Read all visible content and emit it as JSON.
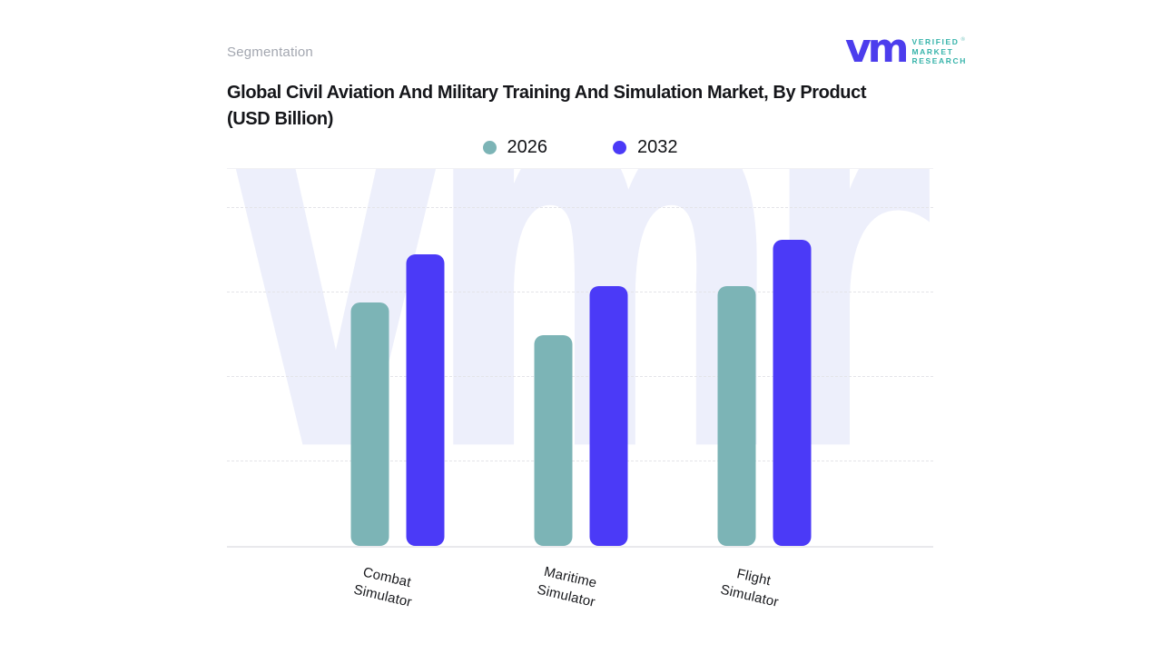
{
  "header": {
    "eyebrow": "Segmentation",
    "logo": {
      "mark": "vm",
      "line1": "VERIFIED",
      "line2": "MARKET",
      "line3": "RESEARCH",
      "registered": "®",
      "mark_color": "#4c3ded",
      "text_color": "#36b3aa"
    }
  },
  "title": {
    "line1": "Global Civil Aviation And Military Training And Simulation Market, By Product",
    "line2": "(USD Billion)"
  },
  "legend": [
    {
      "label": "2026",
      "color": "#7cb4b6"
    },
    {
      "label": "2032",
      "color": "#4b3af7"
    }
  ],
  "chart_data": {
    "type": "bar",
    "title": "Global Civil Aviation And Military Training And Simulation Market, By Product (USD Billion)",
    "categories": [
      "Combat Simulator",
      "Maritime Simulator",
      "Flight Simulator"
    ],
    "series": [
      {
        "name": "2026",
        "color": "#7cb4b6",
        "values": [
          2.88,
          2.49,
          3.07
        ]
      },
      {
        "name": "2032",
        "color": "#4b3af7",
        "values": [
          3.45,
          3.07,
          3.62
        ]
      }
    ],
    "units": "USD Billion (y-axis tick labels not shown; values estimated in gridline units)",
    "xlabel": "",
    "ylabel": "",
    "y_axis": {
      "ylim": [
        0,
        4.46
      ],
      "gridlines_at": [
        1,
        2,
        3,
        4
      ],
      "grid_style": "dashed",
      "tick_labels_visible": false
    },
    "legend_position": "top-center",
    "grid": true,
    "watermark": "vmr"
  }
}
